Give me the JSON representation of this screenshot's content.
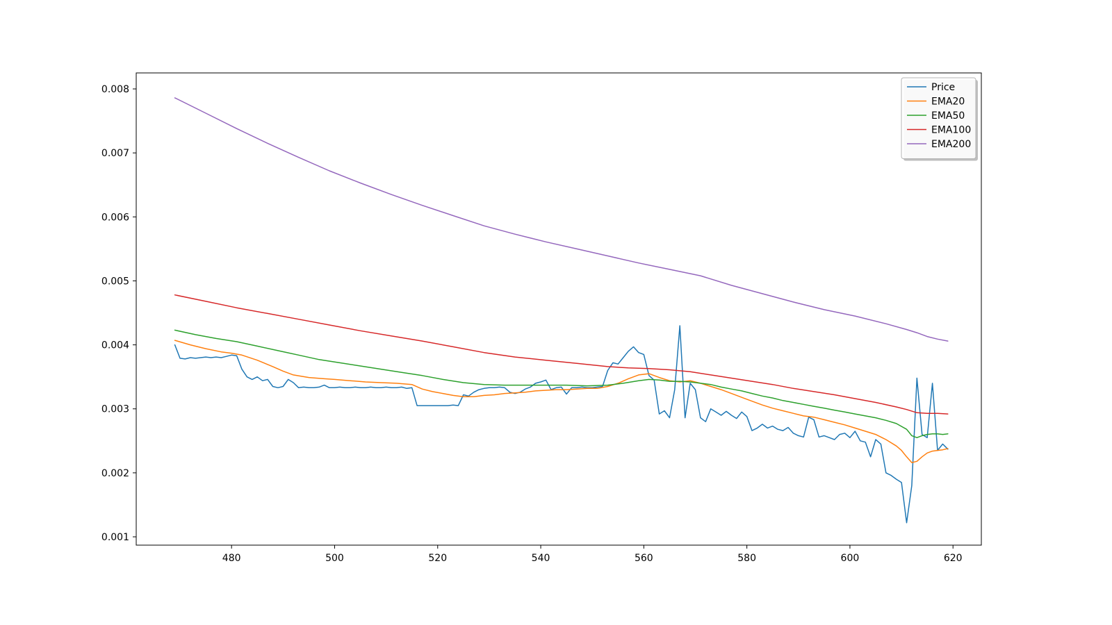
{
  "figure": {
    "background": "#ffffff"
  },
  "chart_data": {
    "type": "line",
    "title": "",
    "xlabel": "",
    "ylabel": "",
    "xlim": [
      461.5,
      625.5
    ],
    "ylim": [
      0.00087,
      0.00825
    ],
    "grid": false,
    "legend_position": "upper right",
    "xticks": [
      480,
      500,
      520,
      540,
      560,
      580,
      600,
      620
    ],
    "xtick_labels": [
      "480",
      "500",
      "520",
      "540",
      "560",
      "580",
      "600",
      "620"
    ],
    "yticks": [
      0.001,
      0.002,
      0.003,
      0.004,
      0.005,
      0.006,
      0.007,
      0.008
    ],
    "ytick_labels": [
      "0.001",
      "0.002",
      "0.003",
      "0.004",
      "0.005",
      "0.006",
      "0.007",
      "0.008"
    ],
    "series": [
      {
        "name": "Price",
        "color": "#1f77b4",
        "x_start": 469,
        "y": [
          0.004,
          0.00379,
          0.00378,
          0.0038,
          0.00379,
          0.0038,
          0.00381,
          0.0038,
          0.00381,
          0.0038,
          0.00382,
          0.00384,
          0.00383,
          0.00362,
          0.0035,
          0.00346,
          0.0035,
          0.00344,
          0.00346,
          0.00335,
          0.00333,
          0.00335,
          0.00346,
          0.00341,
          0.00333,
          0.00334,
          0.00333,
          0.00333,
          0.00334,
          0.00337,
          0.00333,
          0.00333,
          0.00334,
          0.00333,
          0.00333,
          0.00334,
          0.00333,
          0.00333,
          0.00334,
          0.00333,
          0.00333,
          0.00334,
          0.00333,
          0.00333,
          0.00334,
          0.00332,
          0.00333,
          0.00305,
          0.00305,
          0.00305,
          0.00305,
          0.00305,
          0.00305,
          0.00305,
          0.00306,
          0.00305,
          0.00322,
          0.0032,
          0.00326,
          0.0033,
          0.00332,
          0.00333,
          0.00333,
          0.00334,
          0.00333,
          0.00326,
          0.00324,
          0.00326,
          0.00331,
          0.00334,
          0.0034,
          0.00342,
          0.00345,
          0.0033,
          0.00333,
          0.00334,
          0.00323,
          0.00333,
          0.00333,
          0.00334,
          0.00333,
          0.00333,
          0.00334,
          0.00335,
          0.0036,
          0.00372,
          0.0037,
          0.0038,
          0.0039,
          0.00397,
          0.00388,
          0.00385,
          0.00352,
          0.00345,
          0.00292,
          0.00297,
          0.00286,
          0.0033,
          0.0043,
          0.00286,
          0.0034,
          0.0033,
          0.00286,
          0.0028,
          0.003,
          0.00295,
          0.0029,
          0.00296,
          0.0029,
          0.00285,
          0.00295,
          0.00288,
          0.00266,
          0.0027,
          0.00276,
          0.0027,
          0.00273,
          0.00268,
          0.00266,
          0.00271,
          0.00262,
          0.00258,
          0.00256,
          0.00287,
          0.00283,
          0.00256,
          0.00258,
          0.00255,
          0.00252,
          0.0026,
          0.00262,
          0.00255,
          0.00265,
          0.0025,
          0.00248,
          0.00225,
          0.00252,
          0.00245,
          0.002,
          0.00196,
          0.0019,
          0.00185,
          0.00122,
          0.0018,
          0.00348,
          0.0026,
          0.00255,
          0.0034,
          0.00235,
          0.00245,
          0.00237
        ]
      },
      {
        "name": "EMA20",
        "color": "#ff7f0e",
        "x": [
          469,
          472,
          475,
          478,
          480,
          482,
          485,
          488,
          490,
          492,
          495,
          498,
          500,
          503,
          506,
          509,
          512,
          515,
          517,
          519,
          521,
          523,
          525,
          527,
          529,
          531,
          533,
          535,
          537,
          539,
          541,
          543,
          545,
          547,
          549,
          551,
          553,
          555,
          557,
          559,
          561,
          563,
          565,
          567,
          569,
          571,
          573,
          575,
          577,
          579,
          581,
          583,
          585,
          587,
          589,
          591,
          593,
          595,
          597,
          599,
          601,
          603,
          605,
          607,
          609,
          610,
          611,
          612,
          613,
          614,
          615,
          616,
          617,
          618,
          619
        ],
        "y": [
          0.00407,
          0.004,
          0.00394,
          0.00389,
          0.00387,
          0.00384,
          0.00376,
          0.00366,
          0.00359,
          0.00353,
          0.00349,
          0.00347,
          0.00346,
          0.00344,
          0.00342,
          0.00341,
          0.0034,
          0.00338,
          0.00331,
          0.00327,
          0.00324,
          0.00321,
          0.00319,
          0.00319,
          0.00321,
          0.00322,
          0.00324,
          0.00325,
          0.00326,
          0.00328,
          0.00329,
          0.0033,
          0.0033,
          0.00331,
          0.00332,
          0.00332,
          0.00335,
          0.0034,
          0.00347,
          0.00353,
          0.00355,
          0.00349,
          0.00344,
          0.00342,
          0.00344,
          0.0034,
          0.00335,
          0.0033,
          0.00324,
          0.00318,
          0.00312,
          0.00306,
          0.00301,
          0.00297,
          0.00293,
          0.00289,
          0.00287,
          0.00283,
          0.00279,
          0.00275,
          0.0027,
          0.00265,
          0.0026,
          0.00252,
          0.00242,
          0.00235,
          0.00225,
          0.00216,
          0.00218,
          0.00225,
          0.00231,
          0.00234,
          0.00235,
          0.00236,
          0.00238
        ]
      },
      {
        "name": "EMA50",
        "color": "#2ca02c",
        "x": [
          469,
          473,
          477,
          481,
          485,
          489,
          493,
          497,
          501,
          505,
          509,
          513,
          517,
          521,
          525,
          529,
          533,
          537,
          541,
          545,
          549,
          553,
          556,
          559,
          561,
          563,
          565,
          567,
          569,
          571,
          573,
          575,
          577,
          579,
          581,
          583,
          585,
          587,
          589,
          591,
          593,
          595,
          597,
          599,
          601,
          603,
          605,
          607,
          609,
          611,
          612,
          613,
          614,
          615,
          616,
          617,
          618,
          619
        ],
        "y": [
          0.00423,
          0.00416,
          0.0041,
          0.00405,
          0.00398,
          0.00391,
          0.00384,
          0.00377,
          0.00372,
          0.00367,
          0.00362,
          0.00357,
          0.00352,
          0.00346,
          0.00341,
          0.00338,
          0.00337,
          0.00337,
          0.00337,
          0.00337,
          0.00336,
          0.00337,
          0.0034,
          0.00344,
          0.00346,
          0.00345,
          0.00343,
          0.00343,
          0.00342,
          0.0034,
          0.00338,
          0.00334,
          0.00331,
          0.00328,
          0.00324,
          0.0032,
          0.00317,
          0.00313,
          0.0031,
          0.00307,
          0.00304,
          0.00301,
          0.00298,
          0.00295,
          0.00292,
          0.00289,
          0.00286,
          0.00282,
          0.00277,
          0.00268,
          0.00258,
          0.00255,
          0.00258,
          0.0026,
          0.00261,
          0.00261,
          0.0026,
          0.00261
        ]
      },
      {
        "name": "EMA100",
        "color": "#d62728",
        "x": [
          469,
          475,
          481,
          487,
          493,
          499,
          505,
          511,
          517,
          523,
          529,
          535,
          541,
          547,
          553,
          557,
          561,
          565,
          569,
          573,
          577,
          581,
          585,
          589,
          593,
          597,
          601,
          605,
          609,
          611,
          613,
          615,
          617,
          619
        ],
        "y": [
          0.00478,
          0.00468,
          0.00458,
          0.00449,
          0.0044,
          0.00431,
          0.00422,
          0.00414,
          0.00406,
          0.00397,
          0.00388,
          0.00381,
          0.00376,
          0.00371,
          0.00366,
          0.00364,
          0.00363,
          0.00361,
          0.00358,
          0.00353,
          0.00348,
          0.00343,
          0.00338,
          0.00332,
          0.00327,
          0.00322,
          0.00316,
          0.0031,
          0.00303,
          0.00299,
          0.00294,
          0.00293,
          0.00293,
          0.00292
        ]
      },
      {
        "name": "EMA200",
        "color": "#9467bd",
        "x": [
          469,
          475,
          481,
          487,
          493,
          499,
          505,
          511,
          517,
          523,
          529,
          535,
          541,
          547,
          553,
          559,
          565,
          571,
          577,
          583,
          589,
          595,
          601,
          607,
          611,
          613,
          615,
          617,
          619
        ],
        "y": [
          0.00786,
          0.00762,
          0.00738,
          0.00715,
          0.00693,
          0.00672,
          0.00653,
          0.00635,
          0.00618,
          0.00602,
          0.00586,
          0.00573,
          0.00561,
          0.0055,
          0.00539,
          0.00528,
          0.00518,
          0.00508,
          0.00493,
          0.0048,
          0.00467,
          0.00455,
          0.00445,
          0.00433,
          0.00424,
          0.00419,
          0.00413,
          0.00409,
          0.00406
        ]
      }
    ]
  }
}
